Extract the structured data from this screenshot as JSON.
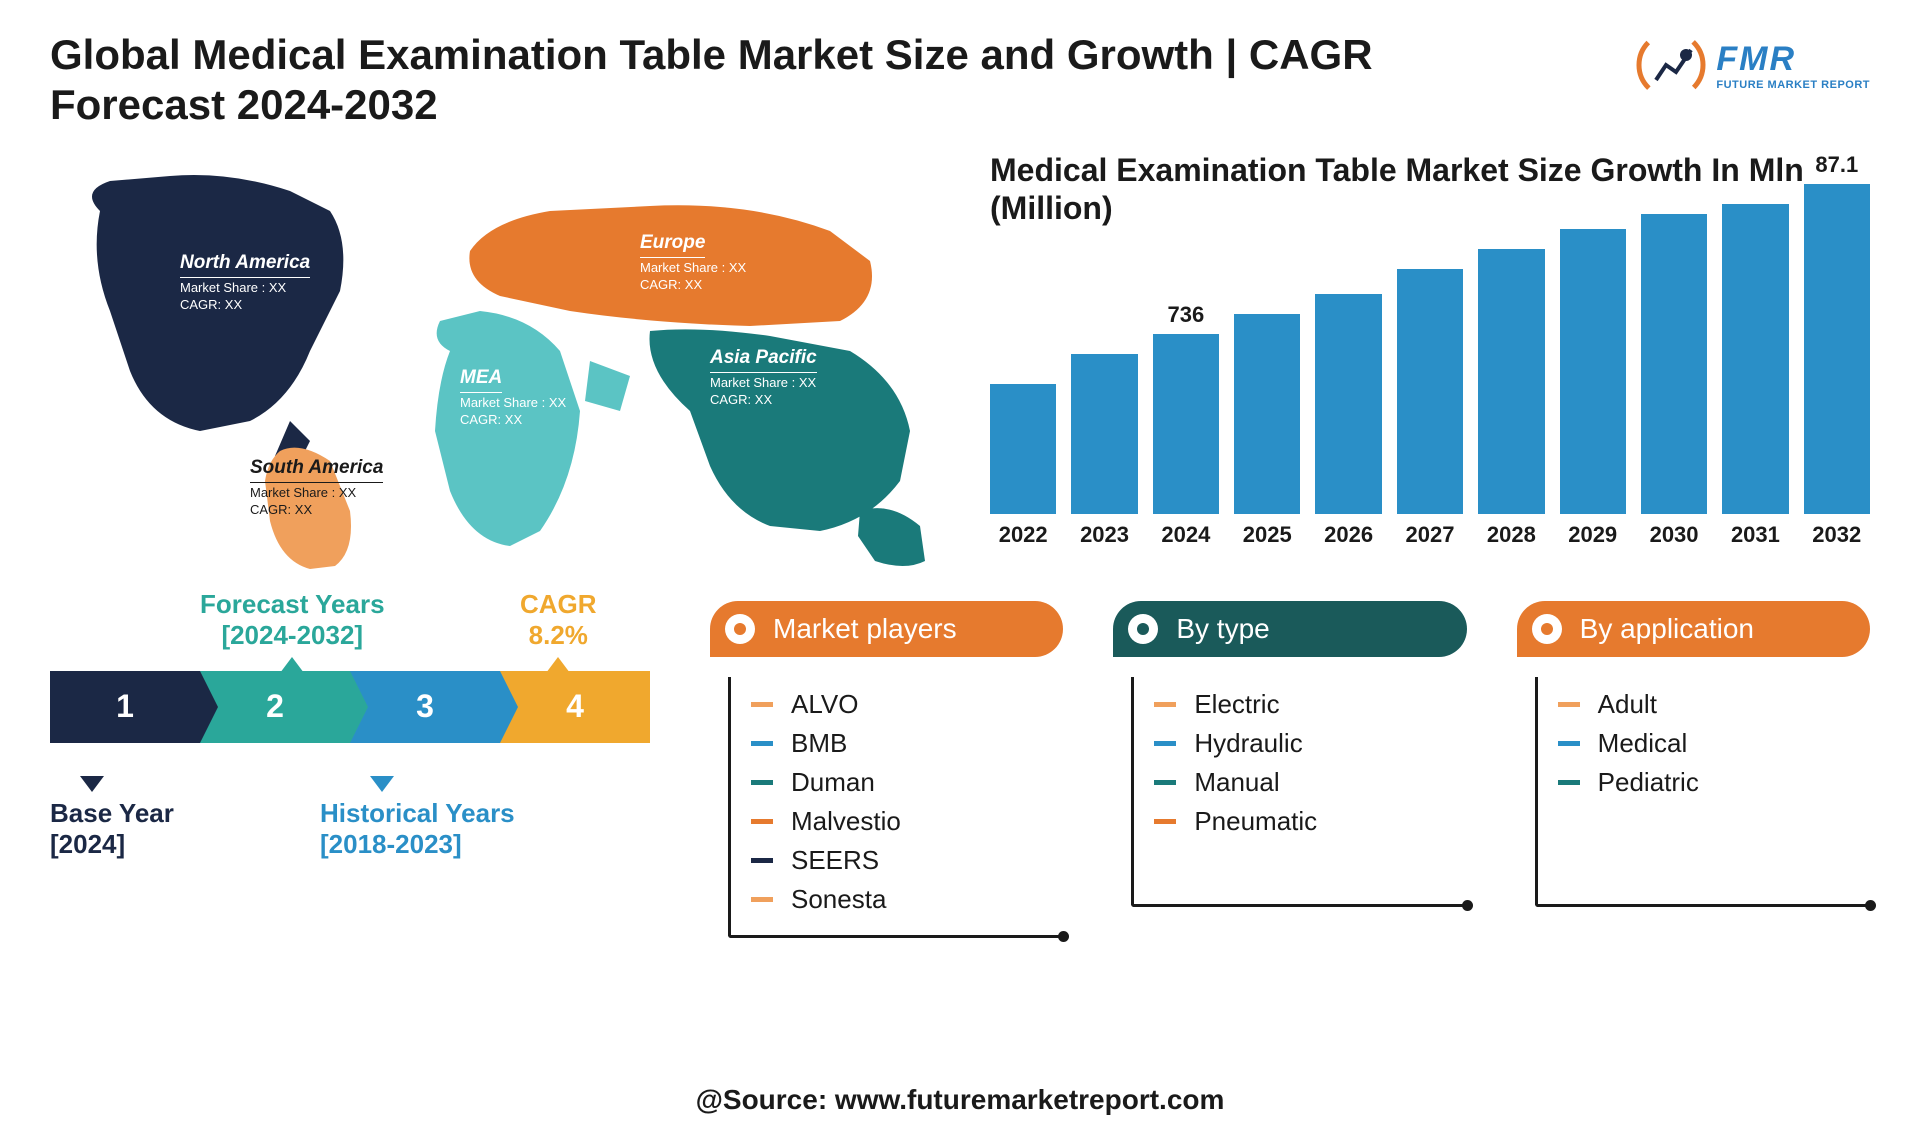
{
  "title": "Global Medical Examination Table Market Size and Growth | CAGR Forecast 2024-2032",
  "logo": {
    "fmr": "FMR",
    "sub": "FUTURE MARKET REPORT"
  },
  "colors": {
    "na": "#1b2845",
    "sa": "#f0a05c",
    "mea": "#5bc4c4",
    "eu": "#e67a2e",
    "ap": "#1a7a7a",
    "bar": "#2a8fc7",
    "seg1": "#1b2845",
    "seg2": "#2aa79a",
    "seg3": "#2a8fc7",
    "seg4": "#f0a82e",
    "pill_orange": "#e67a2e",
    "pill_teal": "#1a5a5a",
    "pill_orange2": "#e67a2e",
    "dash": [
      "#f0a05c",
      "#2a8fc7",
      "#1a7a7a",
      "#e67a2e",
      "#1b2845",
      "#f0a05c"
    ]
  },
  "regions": {
    "na": {
      "name": "North America",
      "share": "Market Share : XX",
      "cagr": "CAGR: XX"
    },
    "sa": {
      "name": "South America",
      "share": "Market Share : XX",
      "cagr": "CAGR: XX"
    },
    "mea": {
      "name": "MEA",
      "share": "Market Share : XX",
      "cagr": "CAGR: XX"
    },
    "eu": {
      "name": "Europe",
      "share": "Market Share : XX",
      "cagr": "CAGR: XX"
    },
    "ap": {
      "name": "Asia Pacific",
      "share": "Market Share : XX",
      "cagr": "CAGR: XX"
    }
  },
  "chart": {
    "title": "Medical Examination Table Market Size Growth In Mln (Million)",
    "years": [
      "2022",
      "2023",
      "2024",
      "2025",
      "2026",
      "2027",
      "2028",
      "2029",
      "2030",
      "2031",
      "2032"
    ],
    "heights": [
      130,
      160,
      180,
      200,
      220,
      245,
      265,
      285,
      300,
      310,
      330
    ],
    "labels": [
      "",
      "",
      "736",
      "",
      "",
      "",
      "",
      "",
      "",
      "",
      "87.1"
    ]
  },
  "timeline": {
    "forecast_lbl": "Forecast Years",
    "forecast_range": "[2024-2032]",
    "cagr_lbl": "CAGR",
    "cagr_val": "8.2%",
    "base_lbl": "Base Year",
    "base_range": "[2024]",
    "hist_lbl": "Historical Years",
    "hist_range": "[2018-2023]",
    "nums": [
      "1",
      "2",
      "3",
      "4"
    ]
  },
  "cols": [
    {
      "title": "Market players",
      "items": [
        "ALVO",
        "BMB",
        "Duman",
        "Malvestio",
        "SEERS",
        "Sonesta"
      ],
      "pill": "#e67a2e"
    },
    {
      "title": "By type",
      "items": [
        "Electric",
        "Hydraulic",
        "Manual",
        "Pneumatic"
      ],
      "pill": "#1a5a5a"
    },
    {
      "title": "By application",
      "items": [
        "Adult",
        "Medical",
        "Pediatric"
      ],
      "pill": "#e67a2e"
    }
  ],
  "source": "@Source: www.futuremarketreport.com"
}
